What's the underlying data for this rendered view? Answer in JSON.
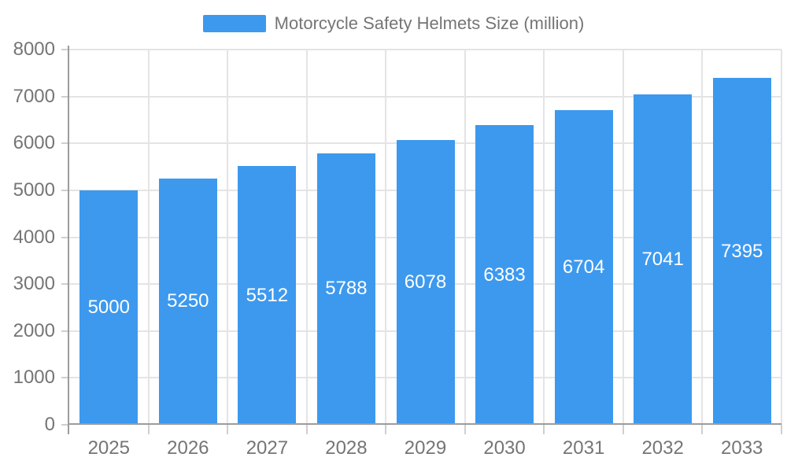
{
  "chart_data": {
    "type": "bar",
    "title": "Motorcycle Safety Helmets Size (million)",
    "categories": [
      "2025",
      "2026",
      "2027",
      "2028",
      "2029",
      "2030",
      "2031",
      "2032",
      "2033"
    ],
    "series": [
      {
        "name": "Motorcycle Safety Helmets Size (million)",
        "values": [
          5000,
          5250,
          5512,
          5788,
          6078,
          6383,
          6704,
          7041,
          7395
        ]
      }
    ],
    "bar_value_labels": [
      "5000",
      "5250",
      "5512",
      "5788",
      "6078",
      "6383",
      "6704",
      "7041",
      "7395"
    ],
    "xlabel": "",
    "ylabel": "",
    "ylim": [
      0,
      8000
    ],
    "yticks": [
      0,
      1000,
      2000,
      3000,
      4000,
      5000,
      6000,
      7000,
      8000
    ],
    "grid": "on",
    "legend_position": "top-center",
    "colors": {
      "bar": "#3D99EE",
      "bar_label": "#ffffff",
      "axis_text": "#757575",
      "axis_line": "#9c9c9c",
      "grid_line": "#e4e4e4"
    }
  }
}
